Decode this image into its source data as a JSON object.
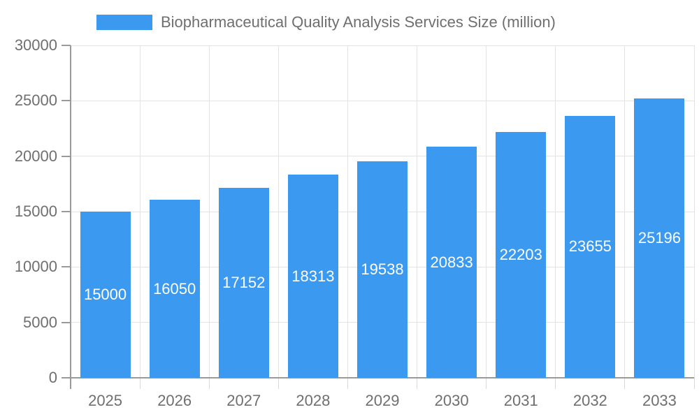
{
  "legend": {
    "label": "Biopharmaceutical Quality Analysis Services Size (million)"
  },
  "chart_data": {
    "type": "bar",
    "title": "Biopharmaceutical Quality Analysis Services Size (million)",
    "categories": [
      "2025",
      "2026",
      "2027",
      "2028",
      "2029",
      "2030",
      "2031",
      "2032",
      "2033"
    ],
    "values": [
      15000,
      16050,
      17152,
      18313,
      19538,
      20833,
      22203,
      23655,
      25196
    ],
    "series": [
      {
        "name": "Biopharmaceutical Quality Analysis Services Size (million)",
        "values": [
          15000,
          16050,
          17152,
          18313,
          19538,
          20833,
          22203,
          23655,
          25196
        ]
      }
    ],
    "xlabel": "",
    "ylabel": "",
    "ylim": [
      0,
      30000
    ],
    "yticks": [
      0,
      5000,
      10000,
      15000,
      20000,
      25000,
      30000
    ],
    "grid": true,
    "legend_position": "top",
    "value_labels": "inside-center",
    "colors": {
      "bar": "#3b99ef",
      "value_label": "#ffffff",
      "axis_text": "#6f6f6f",
      "axis_line": "#9a9a9a",
      "gridline": "#e3e3e3",
      "background": "#ffffff"
    }
  }
}
